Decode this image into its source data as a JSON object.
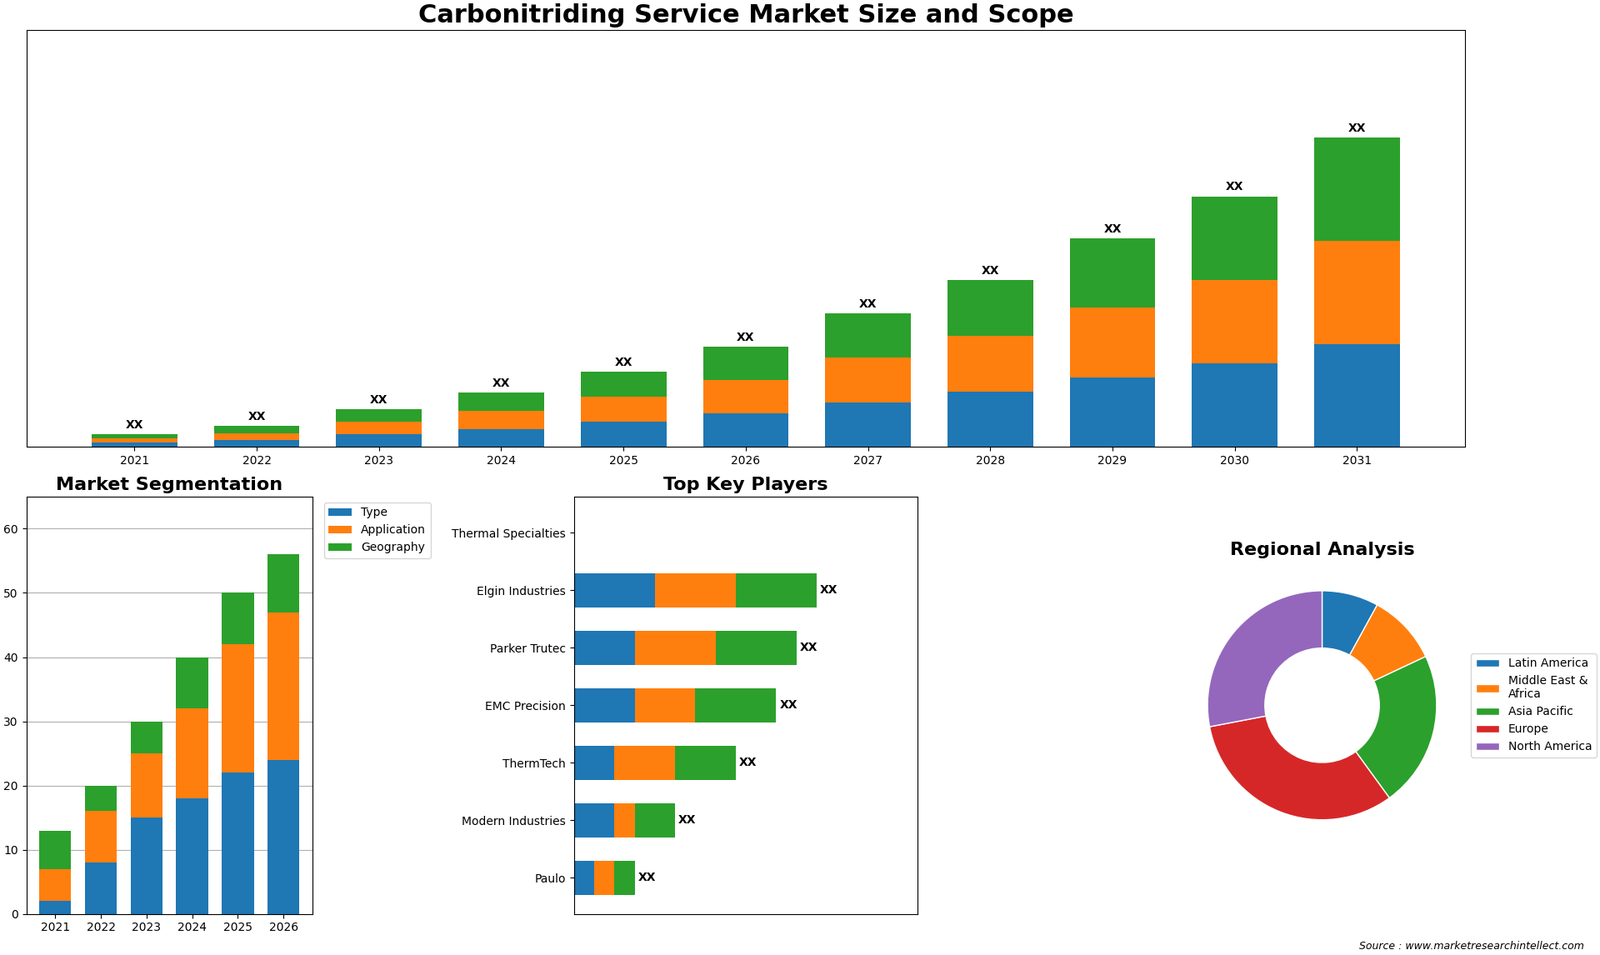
{
  "chart_data": [
    {
      "type": "bar",
      "title": "Carbonitriding Service Market Size and Scope",
      "stacked": true,
      "categories": [
        "2021",
        "2022",
        "2023",
        "2024",
        "2025",
        "2026",
        "2027",
        "2028",
        "2029",
        "2030",
        "2031"
      ],
      "series": [
        {
          "values": [
            1.5,
            2.5,
            4.5,
            6.5,
            9,
            12,
            16,
            20,
            25,
            30,
            37
          ]
        },
        {
          "values": [
            1.5,
            2.5,
            4.5,
            6.5,
            9,
            12,
            16,
            20,
            25,
            30,
            37
          ]
        },
        {
          "values": [
            1.5,
            2.5,
            4.5,
            6.5,
            9,
            12,
            16,
            20,
            25,
            30,
            37
          ],
          "value_labels": [
            "XX",
            "XX",
            "XX",
            "XX",
            "XX",
            "XX",
            "XX",
            "XX",
            "XX",
            "XX",
            "XX"
          ]
        }
      ],
      "ylim": [
        0,
        149.85
      ],
      "tick_labels": "x",
      "data_labels": true
    },
    {
      "type": "bar",
      "title": "Market Segmentation",
      "stacked": true,
      "categories": [
        "2021",
        "2022",
        "2023",
        "2024",
        "2025",
        "2026"
      ],
      "series": [
        {
          "name": "Type",
          "values": [
            2,
            8,
            15,
            18,
            22,
            24
          ]
        },
        {
          "name": "Application",
          "values": [
            5,
            8,
            10,
            14,
            20,
            23
          ]
        },
        {
          "name": "Geography",
          "values": [
            6,
            4,
            5,
            8,
            8,
            9
          ]
        }
      ],
      "ylim": [
        0,
        65
      ],
      "yticks": [
        0,
        10,
        20,
        30,
        40,
        50,
        60
      ],
      "grid": true,
      "legend": "upper left"
    },
    {
      "type": "bar",
      "title": "Top Key Players",
      "stacked": true,
      "orientation": "horizontal",
      "categories": [
        "Thermal Specialties",
        "Elgin Industries",
        "Parker Trutec",
        "EMC Precision",
        "ThermTech",
        "Modern Industries",
        "Paulo"
      ],
      "series": [
        {
          "values": [
            0,
            4,
            3,
            3,
            2,
            2,
            1
          ]
        },
        {
          "values": [
            0,
            4,
            4,
            3,
            3,
            1,
            1
          ]
        },
        {
          "values": [
            0,
            4,
            4,
            4,
            3,
            2,
            1
          ],
          "value_labels": [
            null,
            "XX",
            "XX",
            "XX",
            "XX",
            "XX",
            "XX"
          ]
        }
      ],
      "xlim": [
        0,
        17
      ],
      "tick_labels": "y",
      "data_labels": true
    },
    {
      "type": "pie",
      "title": "Regional Analysis",
      "categories": [
        "Latin America",
        "Middle East &\nAfrica",
        "Asia Pacific",
        "Europe",
        "North America"
      ],
      "values": [
        8,
        10,
        22,
        32,
        28
      ],
      "legend": "center left",
      "annotations": [
        "Source : www.marketresearchintellect.com"
      ]
    }
  ]
}
